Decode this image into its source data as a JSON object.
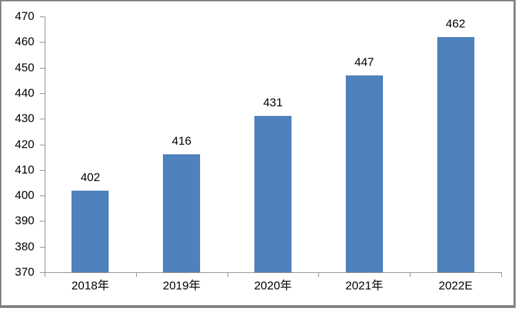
{
  "chart_data": {
    "type": "bar",
    "title": "",
    "xlabel": "",
    "ylabel": "",
    "categories": [
      "2018年",
      "2019年",
      "2020年",
      "2021年",
      "2022E"
    ],
    "values": [
      402,
      416,
      431,
      447,
      462
    ],
    "data_labels": [
      "402",
      "416",
      "431",
      "447",
      "462"
    ],
    "yticks": [
      470,
      460,
      450,
      440,
      430,
      420,
      410,
      400,
      390,
      380,
      370
    ],
    "ytick_labels": [
      "470",
      "460",
      "450",
      "440",
      "430",
      "420",
      "410",
      "400",
      "390",
      "380",
      "370"
    ],
    "ylim": [
      370,
      470
    ],
    "ytick_step": 10,
    "grid": false,
    "legend": false,
    "bar_color": "#4F81BD",
    "axis_color": "#8C8C8C",
    "text_color": "#000000",
    "frame_border_color": "#808080",
    "background_color": "#FFFFFF"
  }
}
